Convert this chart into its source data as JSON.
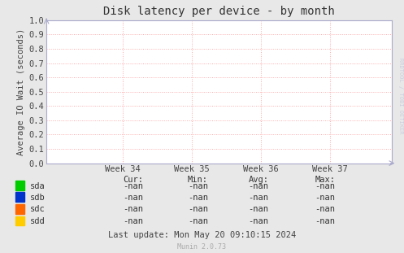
{
  "title": "Disk latency per device - by month",
  "ylabel": "Average IO Wait (seconds)",
  "bg_color": "#e8e8e8",
  "plot_bg_color": "#ffffff",
  "grid_color": "#ffaaaa",
  "border_color": "#aaaacc",
  "ylim": [
    0.0,
    1.0
  ],
  "yticks": [
    0.0,
    0.1,
    0.2,
    0.3,
    0.4,
    0.5,
    0.6,
    0.7,
    0.8,
    0.9,
    1.0
  ],
  "xtick_labels": [
    "Week 34",
    "Week 35",
    "Week 36",
    "Week 37"
  ],
  "xtick_positions": [
    0.22,
    0.42,
    0.62,
    0.82
  ],
  "legend_items": [
    {
      "label": "sda",
      "color": "#00cc00"
    },
    {
      "label": "sdb",
      "color": "#0033cc"
    },
    {
      "label": "sdc",
      "color": "#ff6600"
    },
    {
      "label": "sdd",
      "color": "#ffcc00"
    }
  ],
  "legend_cols": [
    "Cur:",
    "Min:",
    "Avg:",
    "Max:"
  ],
  "legend_values": [
    "-nan",
    "-nan",
    "-nan",
    "-nan"
  ],
  "last_update": "Last update: Mon May 20 09:10:15 2024",
  "munin_version": "Munin 2.0.73",
  "watermark": "RRDTOOL / TOBI OETIKER",
  "title_fontsize": 10,
  "axis_label_fontsize": 7.5,
  "tick_fontsize": 7.5,
  "legend_fontsize": 7.5,
  "watermark_fontsize": 5
}
